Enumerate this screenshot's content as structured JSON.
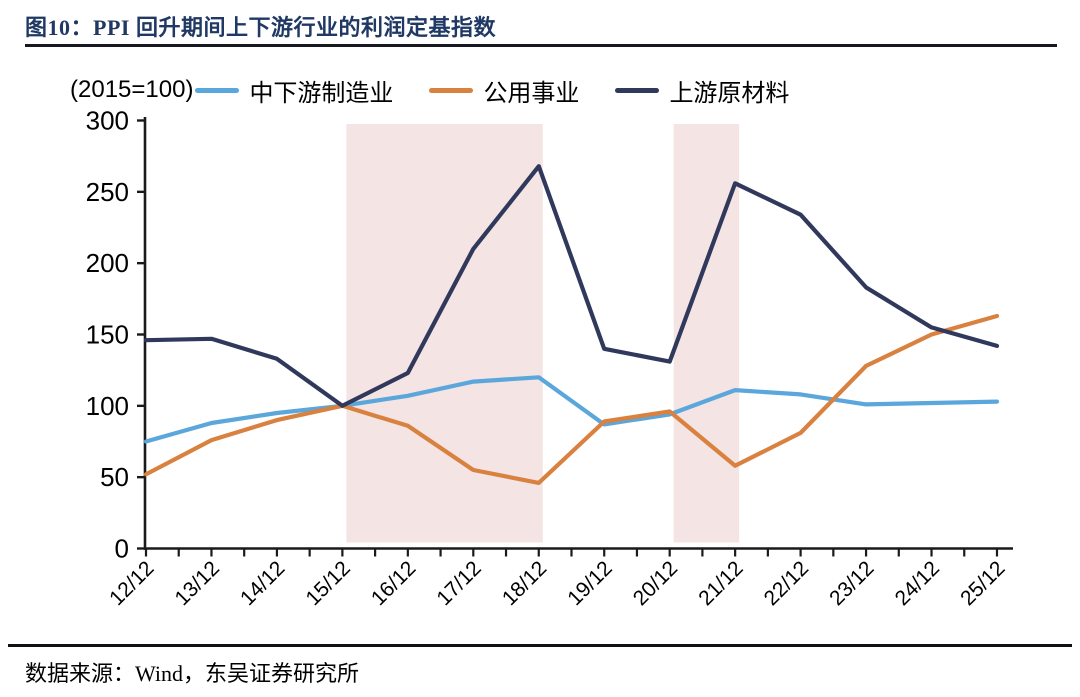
{
  "header": {
    "title": "图10：PPI 回升期间上下游行业的利润定基指数"
  },
  "footer": {
    "source": "数据来源：Wind，东吴证券研究所"
  },
  "chart_data": {
    "type": "line",
    "title": "PPI 回升期间上下游行业的利润定基指数",
    "unit_label": "(2015=100)",
    "xlabel": "",
    "ylabel": "",
    "ylim": [
      0,
      300
    ],
    "yticks": [
      0,
      50,
      100,
      150,
      200,
      250,
      300
    ],
    "grid": false,
    "legend_position": "top",
    "categories": [
      "12/12",
      "13/12",
      "14/12",
      "15/12",
      "16/12",
      "17/12",
      "18/12",
      "19/12",
      "20/12",
      "21/12",
      "22/12",
      "23/12",
      "24/12",
      "25/12"
    ],
    "series": [
      {
        "name": "中下游制造业",
        "color": "#5BA7DC",
        "values": [
          75,
          88,
          95,
          100,
          107,
          117,
          120,
          87,
          94,
          111,
          108,
          101,
          102,
          103
        ]
      },
      {
        "name": "公用事业",
        "color": "#D9813F",
        "values": [
          52,
          76,
          90,
          100,
          86,
          55,
          46,
          89,
          96,
          58,
          81,
          128,
          150,
          163
        ]
      },
      {
        "name": "上游原材料",
        "color": "#30395C",
        "values": [
          146,
          147,
          133,
          100,
          123,
          210,
          268,
          140,
          131,
          256,
          234,
          183,
          155,
          142
        ]
      }
    ],
    "highlight_bands": [
      {
        "from": "15/12",
        "to": "18/12",
        "color": "#F4E4E3"
      },
      {
        "from": "20/12",
        "to": "21/12",
        "color": "#F4E4E3"
      }
    ]
  },
  "colors": {
    "axis": "#1A1A1A",
    "tick_label": "#000000",
    "title": "#1F3864",
    "rule": "#17171F"
  }
}
